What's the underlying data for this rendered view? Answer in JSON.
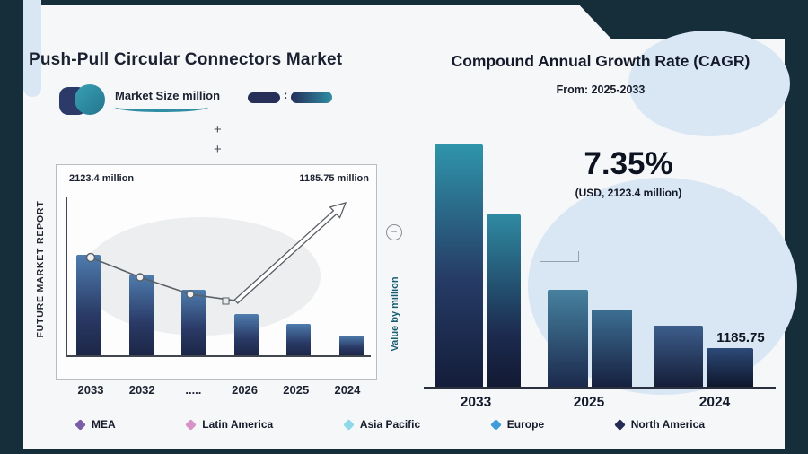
{
  "left_panel": {
    "title": "Push-Pull Circular Connectors Market",
    "legend_label": "Market Size million",
    "pills_separator": ":"
  },
  "right_panel": {
    "title": "Compound Annual Growth Rate (CAGR)",
    "subtitle": "From: 2025-2033",
    "cagr_value": "7.35%",
    "cagr_note": "(USD, 2123.4 million)"
  },
  "decor": {
    "plus_top": "+",
    "plus_bottom": "+",
    "minus": "−"
  },
  "bottom_legend": {
    "items": [
      {
        "label": "MEA",
        "color": "#7a5fa8"
      },
      {
        "label": "Latin America",
        "color": "#d893c6"
      },
      {
        "label": "Asia Pacific",
        "color": "#8fd8ea"
      },
      {
        "label": "Europe",
        "color": "#3d9ddc"
      },
      {
        "label": "North America",
        "color": "#232d56"
      }
    ]
  },
  "chart_data": [
    {
      "type": "bar",
      "title": "Push-Pull Circular Connectors Market",
      "series_name": "Market Size million",
      "categories": [
        "2033",
        "2032",
        ".....",
        "2026",
        "2025",
        "2024"
      ],
      "relative_heights": [
        100,
        80,
        65,
        41,
        31,
        20
      ],
      "known_values_million": {
        "2033": 2123.4,
        "2024": 1185.75
      },
      "annotations": {
        "start": "2123.4 million",
        "end": "1185.75 million"
      },
      "ylabel": "FUTURE MARKET REPORT",
      "xlabel": "",
      "overlay": "declining marker line from 2033 to 2026 then outlined arrow rising to top right"
    },
    {
      "type": "bar",
      "title": "Compound Annual Growth Rate (CAGR)",
      "subtitle": "From: 2025-2033",
      "cagr": "7.35%",
      "cagr_note": "(USD, 2123.4 million)",
      "categories": [
        "2033",
        "2025",
        "2024"
      ],
      "series": [
        {
          "name": "series-a",
          "relative_heights": [
            100,
            40,
            25
          ]
        },
        {
          "name": "series-b",
          "relative_heights": [
            71,
            32,
            16
          ]
        }
      ],
      "annotation": "1185.75",
      "ylabel": "Value by million",
      "legend_position": "bottom"
    }
  ]
}
